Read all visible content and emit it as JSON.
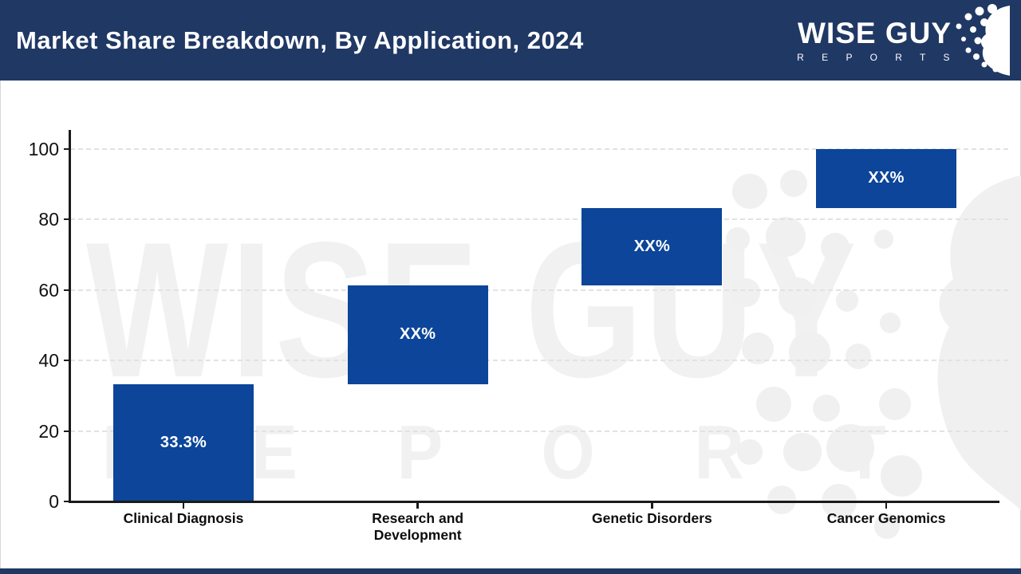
{
  "header": {
    "title": "Market Share Breakdown, By Application, 2024",
    "logo": {
      "wordmark": "WISE GUY",
      "subtext": "R E P O R T S"
    }
  },
  "watermark": {
    "wordmark": "WISE GUY",
    "subtext": "R E P O R T S"
  },
  "colors": {
    "background": "#ffffff",
    "header_bg": "#203864",
    "footer_bg": "#203864",
    "bar_fill": "#0c4599",
    "bar_label": "#ffffff",
    "grid_line": "#e2e2e2",
    "axis_line": "#1a1a1a",
    "tick_label": "#111111",
    "watermark": "#f1f1f1"
  },
  "chart_data": {
    "type": "bar",
    "subtype": "floating-segment-waterfall",
    "title": "Market Share Breakdown, By Application, 2024",
    "categories": [
      "Clinical Diagnosis",
      "Research and Development",
      "Genetic Disorders",
      "Cancer Genomics"
    ],
    "bars": [
      {
        "category": "Clinical Diagnosis",
        "start": 0,
        "end": 33.3,
        "value": 33.3,
        "label": "33.3%"
      },
      {
        "category": "Research and Development",
        "start": 33.3,
        "end": 61.3,
        "value": 28.0,
        "label": "XX%"
      },
      {
        "category": "Genetic Disorders",
        "start": 61.3,
        "end": 83.3,
        "value": 22.0,
        "label": "XX%"
      },
      {
        "category": "Cancer Genomics",
        "start": 83.3,
        "end": 100,
        "value": 16.7,
        "label": "XX%"
      }
    ],
    "xlabel": "",
    "ylabel": "",
    "ylim": [
      0,
      100
    ],
    "yticks": [
      0,
      20,
      40,
      60,
      80,
      100
    ],
    "grid": "horizontal-dashed",
    "legend": "none"
  }
}
